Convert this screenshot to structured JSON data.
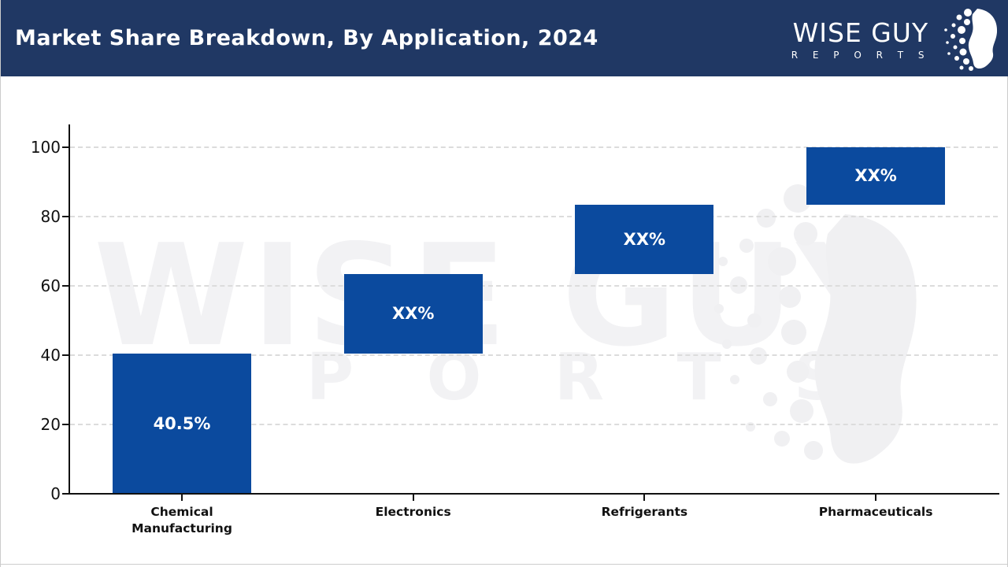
{
  "header": {
    "title": "Market Share Breakdown, By Application, 2024",
    "logo": {
      "line1": "WISE GUY",
      "line2": "R E P O R T S"
    }
  },
  "watermark": {
    "line1": "WISE GUY",
    "line2": "P O R T S"
  },
  "chart_data": {
    "type": "bar",
    "subtype": "waterfall-floating-bars",
    "title": "Market Share Breakdown, By Application, 2024",
    "xlabel": "",
    "ylabel": "",
    "ylim": [
      0,
      100
    ],
    "y_ticks": [
      0,
      20,
      40,
      60,
      80,
      100
    ],
    "grid": "horizontal dashed",
    "legend": "none",
    "bar_color": "#0b4a9e",
    "value_label_color": "#ffffff",
    "categories": [
      "Chemical\nManufacturing",
      "Electronics",
      "Refrigerants",
      "Pharmaceuticals"
    ],
    "segments": [
      {
        "category": "Chemical Manufacturing",
        "start": 0,
        "end": 40.5,
        "label": "40.5%"
      },
      {
        "category": "Electronics",
        "start": 40.5,
        "end": 63.5,
        "label": "XX%"
      },
      {
        "category": "Refrigerants",
        "start": 63.5,
        "end": 83.5,
        "label": "XX%"
      },
      {
        "category": "Pharmaceuticals",
        "start": 83.5,
        "end": 100,
        "label": "XX%"
      }
    ]
  }
}
